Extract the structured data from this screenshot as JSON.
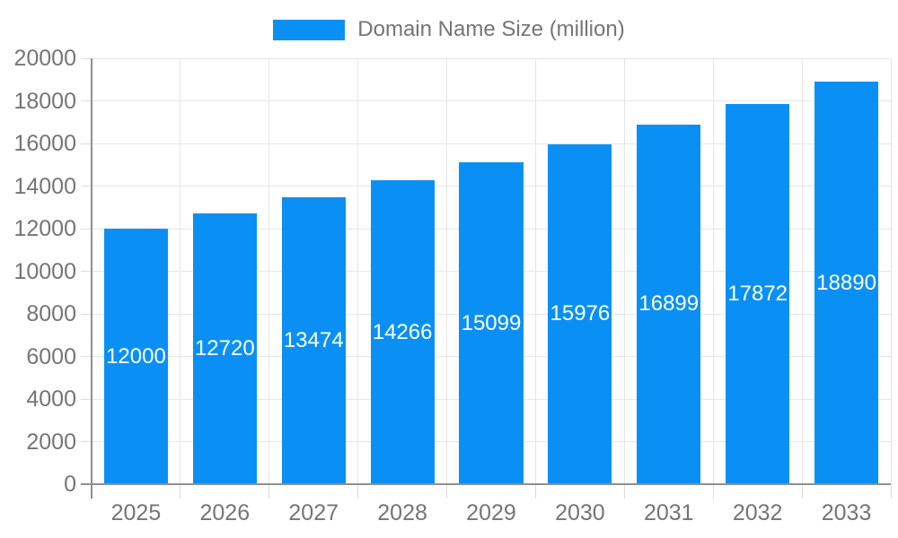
{
  "legend": {
    "label": "Domain Name Size (million)"
  },
  "chart_data": {
    "type": "bar",
    "title": "",
    "xlabel": "",
    "ylabel": "",
    "legend_entries": [
      "Domain Name Size (million)"
    ],
    "legend_position": "top-center",
    "grid": true,
    "categories": [
      "2025",
      "2026",
      "2027",
      "2028",
      "2029",
      "2030",
      "2031",
      "2032",
      "2033"
    ],
    "series": [
      {
        "name": "Domain Name Size (million)",
        "values": [
          12000,
          12720,
          13474,
          14266,
          15099,
          15976,
          16899,
          17872,
          18890
        ]
      }
    ],
    "bar_value_labels": [
      "12000",
      "12720",
      "13474",
      "14266",
      "15099",
      "15976",
      "16899",
      "17872",
      "18890"
    ],
    "ylim": [
      0,
      20000
    ],
    "ytick_step": 2000,
    "ytick_labels": [
      "0",
      "2000",
      "4000",
      "6000",
      "8000",
      "10000",
      "12000",
      "14000",
      "16000",
      "18000",
      "20000"
    ]
  },
  "colors": {
    "bar": "#0a90f5",
    "grid": "#e6e6e6",
    "tick": "#dcdcdc",
    "axis": "#8f8f8f",
    "text": "#757575",
    "value_label": "#ffffff"
  }
}
